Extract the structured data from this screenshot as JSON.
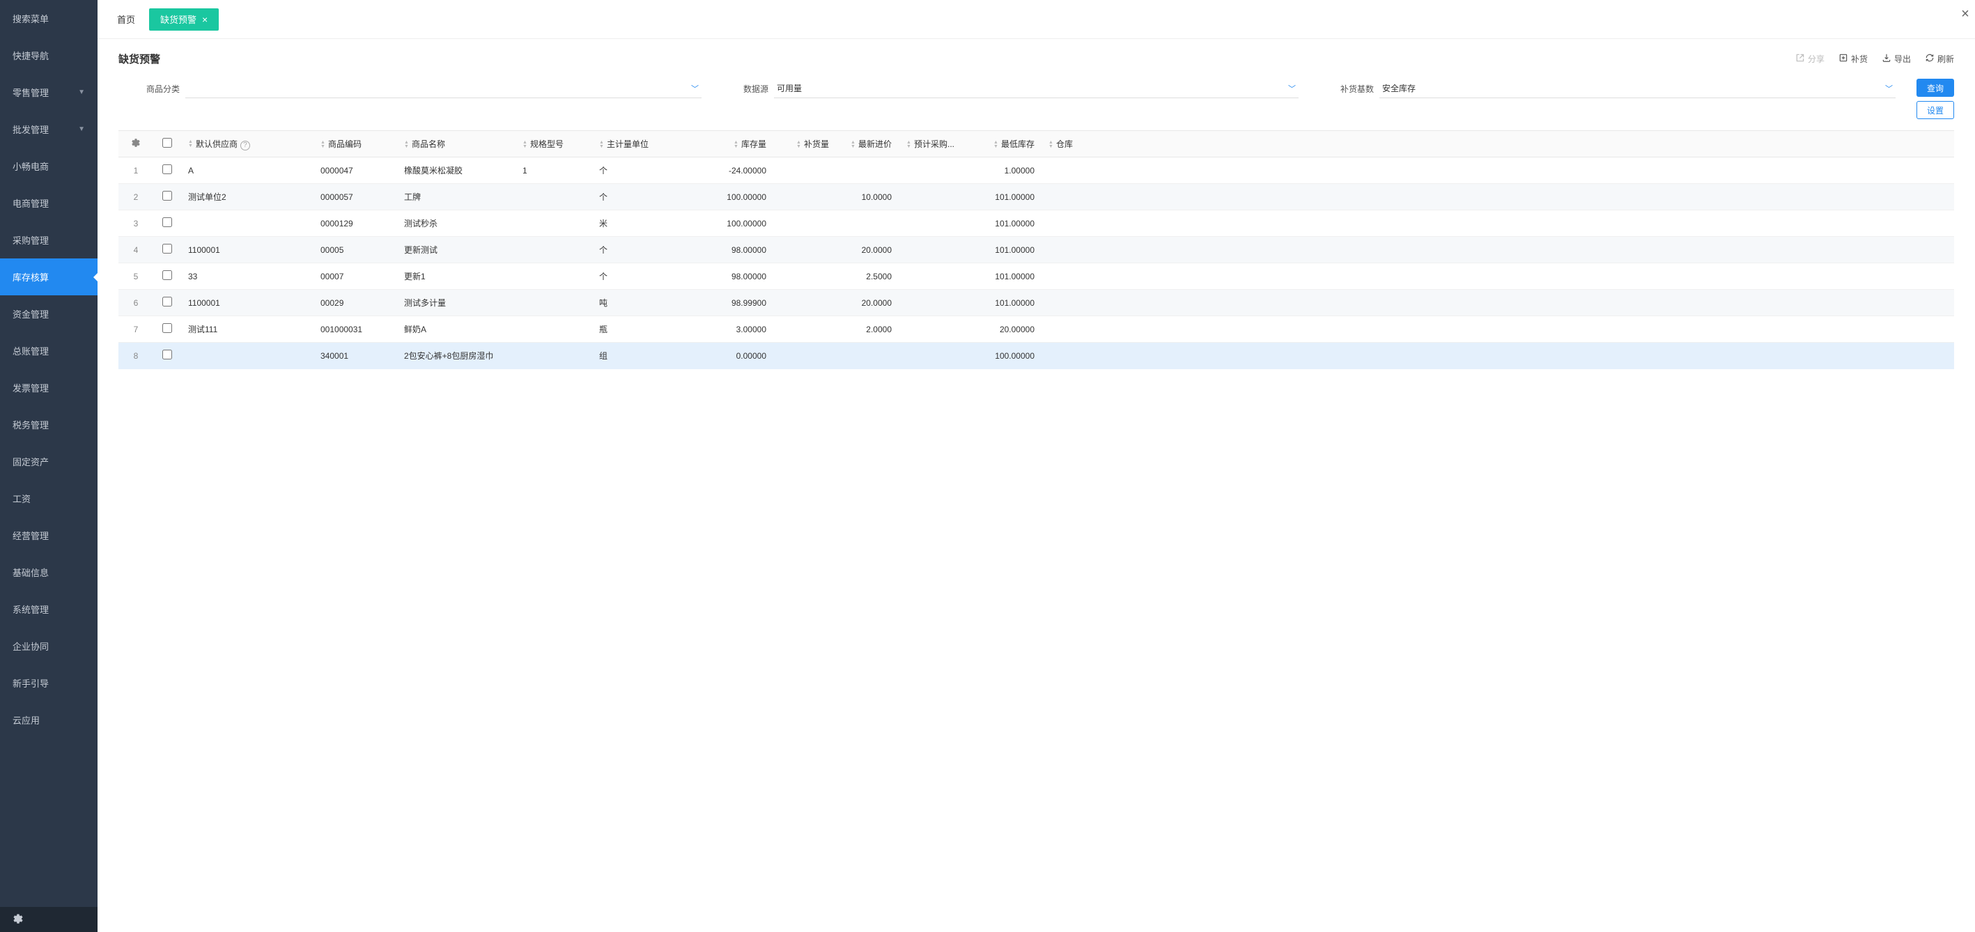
{
  "sidebar": {
    "items": [
      {
        "label": "搜索菜单",
        "expandable": false
      },
      {
        "label": "快捷导航",
        "expandable": false
      },
      {
        "label": "零售管理",
        "expandable": true
      },
      {
        "label": "批发管理",
        "expandable": true
      },
      {
        "label": "小畅电商",
        "expandable": false
      },
      {
        "label": "电商管理",
        "expandable": false
      },
      {
        "label": "采购管理",
        "expandable": false
      },
      {
        "label": "库存核算",
        "expandable": false,
        "active": true
      },
      {
        "label": "资金管理",
        "expandable": false
      },
      {
        "label": "总账管理",
        "expandable": false
      },
      {
        "label": "发票管理",
        "expandable": false
      },
      {
        "label": "税务管理",
        "expandable": false
      },
      {
        "label": "固定资产",
        "expandable": false
      },
      {
        "label": "工资",
        "expandable": false
      },
      {
        "label": "经营管理",
        "expandable": false
      },
      {
        "label": "基础信息",
        "expandable": false
      },
      {
        "label": "系统管理",
        "expandable": false
      },
      {
        "label": "企业协同",
        "expandable": false
      },
      {
        "label": "新手引导",
        "expandable": false
      },
      {
        "label": "云应用",
        "expandable": false
      }
    ]
  },
  "tabs": {
    "home": "首页",
    "active": "缺货预警"
  },
  "page": {
    "title": "缺货预警"
  },
  "actions": {
    "share": "分享",
    "replenish": "补货",
    "export": "导出",
    "refresh": "刷新"
  },
  "filters": {
    "category_label": "商品分类",
    "category_value": "",
    "source_label": "数据源",
    "source_value": "可用量",
    "base_label": "补货基数",
    "base_value": "安全库存"
  },
  "buttons": {
    "query": "查询",
    "settings": "设置"
  },
  "columns": {
    "supplier": "默认供应商",
    "code": "商品编码",
    "name": "商品名称",
    "spec": "规格型号",
    "unit": "主计量单位",
    "stock": "库存量",
    "replenish": "补货量",
    "price": "最新进价",
    "budget": "预计采购...",
    "min": "最低库存",
    "warehouse": "仓库"
  },
  "rows": [
    {
      "idx": "1",
      "supplier": "A",
      "code": "0000047",
      "name": "橡酸莫米松凝胶",
      "spec": "1",
      "unit": "个",
      "stock": "-24.00000",
      "replenish": "",
      "price": "",
      "budget": "",
      "min": "1.00000"
    },
    {
      "idx": "2",
      "supplier": "测试单位2",
      "code": "0000057",
      "name": "工牌",
      "spec": "",
      "unit": "个",
      "stock": "100.00000",
      "replenish": "",
      "price": "10.0000",
      "budget": "",
      "min": "101.00000"
    },
    {
      "idx": "3",
      "supplier": "",
      "code": "0000129",
      "name": "测试秒杀",
      "spec": "",
      "unit": "米",
      "stock": "100.00000",
      "replenish": "",
      "price": "",
      "budget": "",
      "min": "101.00000"
    },
    {
      "idx": "4",
      "supplier": "1100001",
      "code": "00005",
      "name": "更新测试",
      "spec": "",
      "unit": "个",
      "stock": "98.00000",
      "replenish": "",
      "price": "20.0000",
      "budget": "",
      "min": "101.00000"
    },
    {
      "idx": "5",
      "supplier": "33",
      "code": "00007",
      "name": "更新1",
      "spec": "",
      "unit": "个",
      "stock": "98.00000",
      "replenish": "",
      "price": "2.5000",
      "budget": "",
      "min": "101.00000"
    },
    {
      "idx": "6",
      "supplier": "1100001",
      "code": "00029",
      "name": "测试多计量",
      "spec": "",
      "unit": "吨",
      "stock": "98.99900",
      "replenish": "",
      "price": "20.0000",
      "budget": "",
      "min": "101.00000"
    },
    {
      "idx": "7",
      "supplier": "测试111",
      "code": "001000031",
      "name": "鲜奶A",
      "spec": "",
      "unit": "瓶",
      "stock": "3.00000",
      "replenish": "",
      "price": "2.0000",
      "budget": "",
      "min": "20.00000"
    },
    {
      "idx": "8",
      "supplier": "",
      "code": "340001",
      "name": "2包安心裤+8包厨房湿巾",
      "spec": "",
      "unit": "组",
      "stock": "0.00000",
      "replenish": "",
      "price": "",
      "budget": "",
      "min": "100.00000",
      "hovered": true
    }
  ]
}
